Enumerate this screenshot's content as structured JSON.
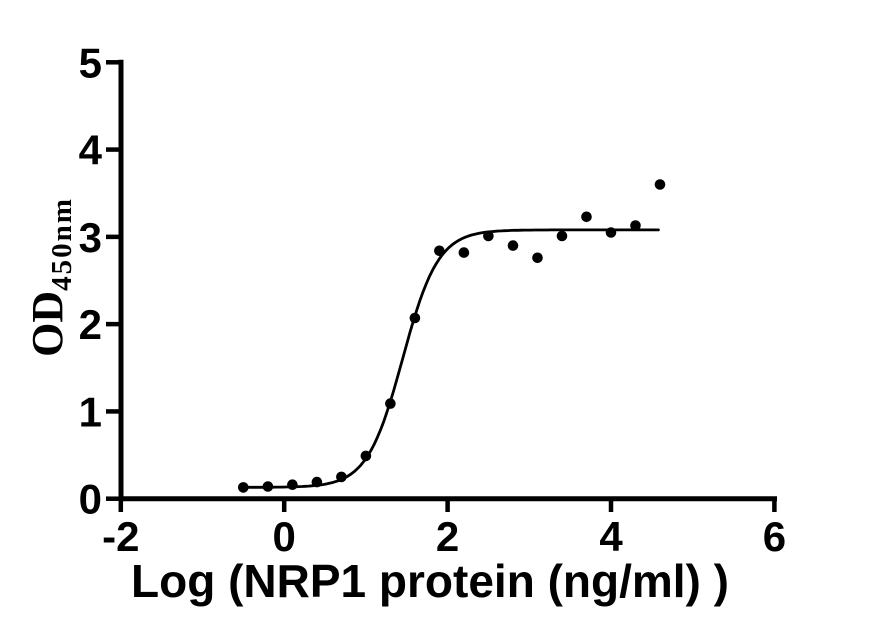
{
  "figure": {
    "background_color": "#ffffff",
    "foreground_color": "#000000"
  },
  "chart_data": {
    "type": "scatter",
    "title": "",
    "xlabel": "Log（NRP1 protein（ng/ml） ）",
    "ylabel": "OD",
    "ylabel_subscript": "450nm",
    "x": [
      -0.5,
      -0.2,
      0.1,
      0.4,
      0.7,
      1.0,
      1.3,
      1.6,
      1.9,
      2.2,
      2.5,
      2.8,
      3.1,
      3.4,
      3.7,
      4.0,
      4.3,
      4.6
    ],
    "y": [
      0.13,
      0.14,
      0.16,
      0.19,
      0.25,
      0.49,
      1.09,
      2.07,
      2.84,
      2.82,
      3.01,
      2.9,
      2.76,
      3.01,
      3.23,
      3.05,
      3.13,
      3.6
    ],
    "xlim": [
      -2,
      6
    ],
    "ylim": [
      0,
      5
    ],
    "xticks": [
      -2,
      0,
      2,
      4,
      6
    ],
    "yticks": [
      0,
      1,
      2,
      3,
      4,
      5
    ],
    "grid": false,
    "legend": false,
    "marker": {
      "shape": "circle",
      "color": "#000000",
      "radius_px": 5.3
    },
    "fit_curve": {
      "model": "4PL sigmoid",
      "bottom": 0.13,
      "top": 3.08,
      "logEC50": 1.45,
      "hill_slope": 2.0,
      "x_start": -0.5,
      "x_end": 4.6,
      "color": "#000000"
    }
  }
}
